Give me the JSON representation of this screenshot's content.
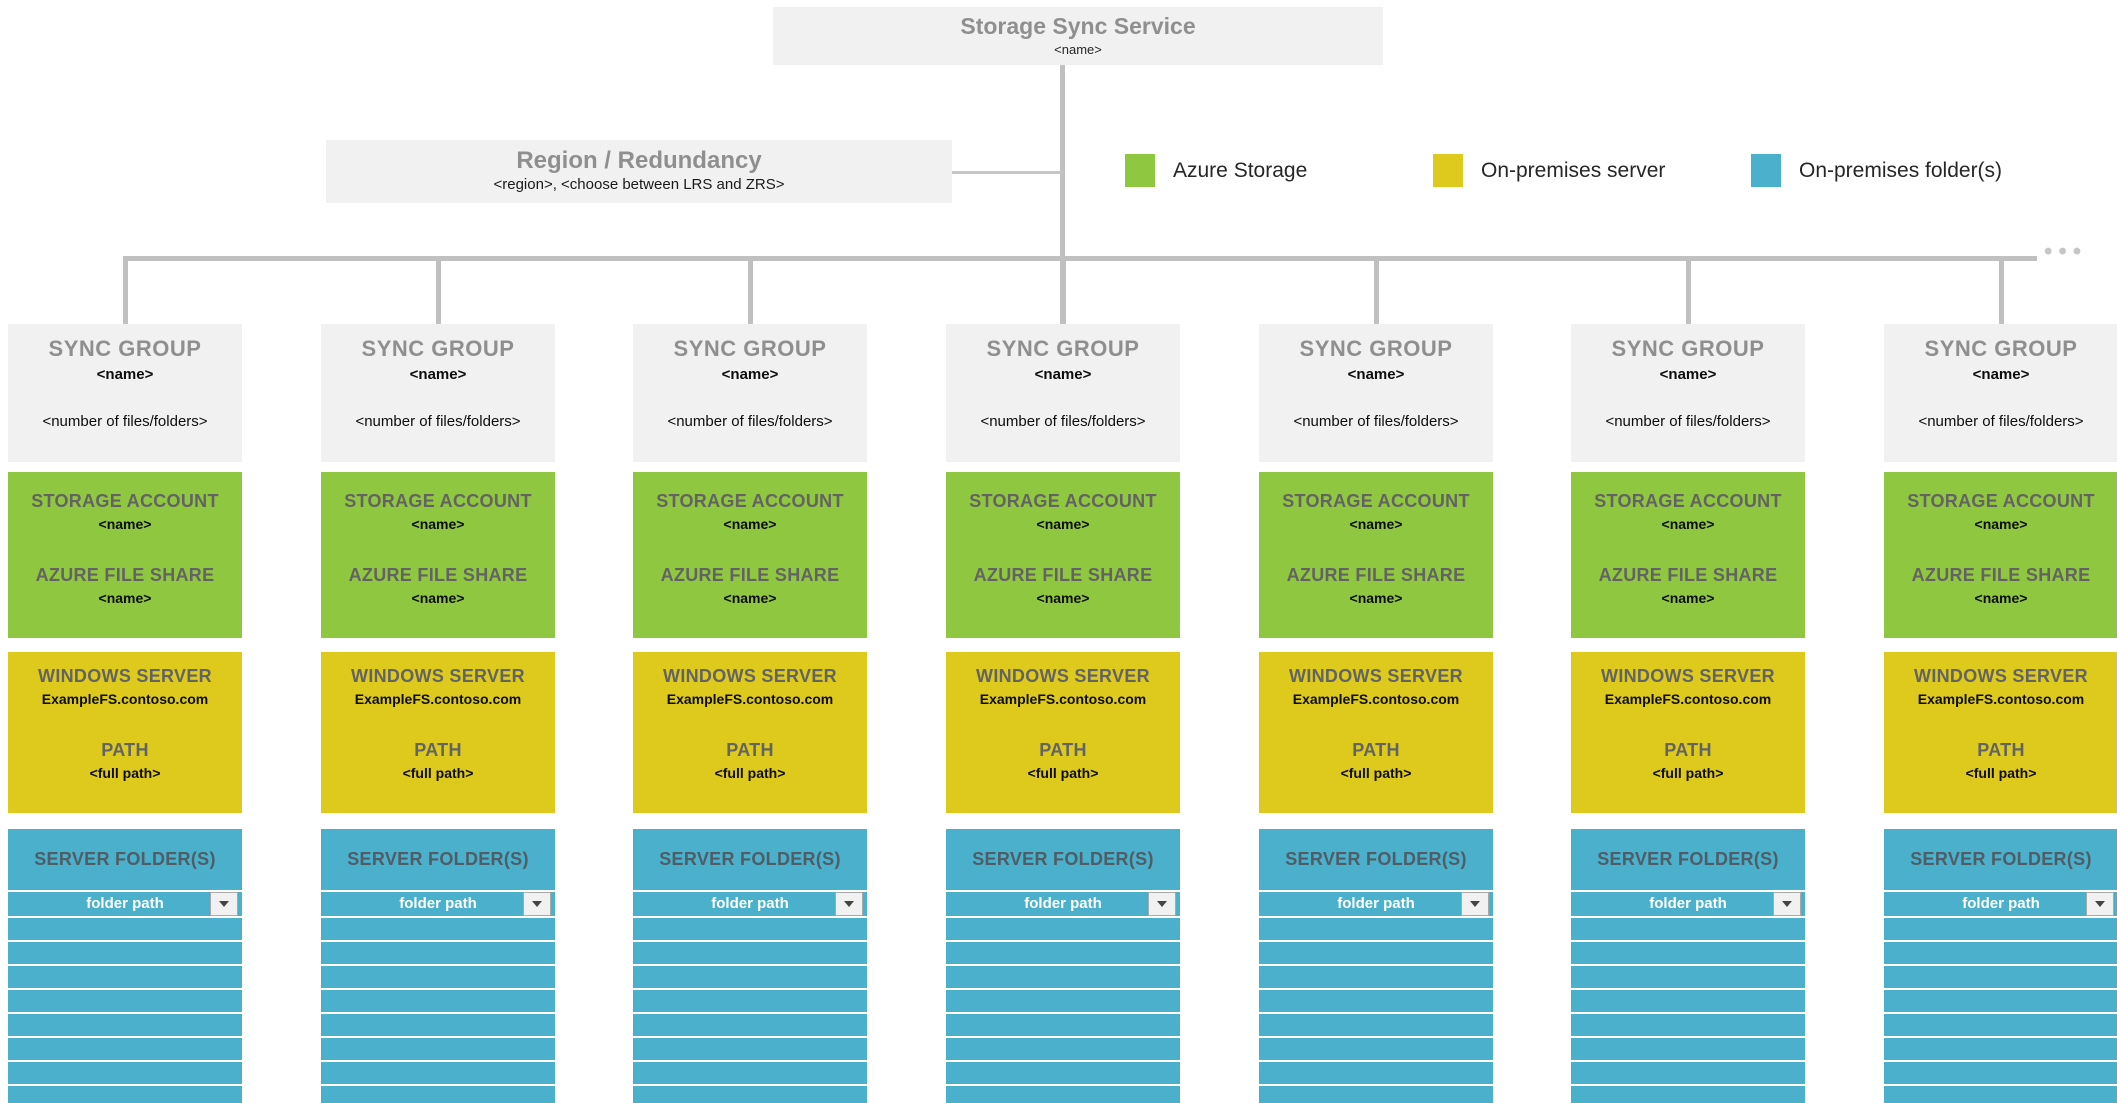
{
  "colors": {
    "azure_green": "#90c740",
    "server_yellow": "#ddca1d",
    "folder_teal": "#4ab0cc",
    "connector_gray": "#c0c0c0",
    "panel_gray": "#f1f1f1"
  },
  "service": {
    "title": "Storage Sync Service",
    "name": "<name>"
  },
  "region": {
    "title": "Region / Redundancy",
    "detail": "<region>, <choose between LRS and ZRS>"
  },
  "legend": [
    {
      "label": "Azure Storage",
      "color": "#90c740"
    },
    {
      "label": "On-premises server",
      "color": "#ddca1d"
    },
    {
      "label": "On-premises folder(s)",
      "color": "#4ab0cc"
    }
  ],
  "more_indicator": "•••",
  "sync_groups": [
    {
      "title": "SYNC GROUP",
      "name": "<name>",
      "count": "<number of files/folders>",
      "storage": {
        "account_heading": "STORAGE ACCOUNT",
        "account_name": "<name>",
        "share_heading": "AZURE FILE SHARE",
        "share_name": "<name>"
      },
      "server": {
        "server_heading": "WINDOWS SERVER",
        "server_name": "ExampleFS.contoso.com",
        "path_heading": "PATH",
        "path_name": "<full path>"
      },
      "folders": {
        "heading": "SERVER FOLDER(S)",
        "path_label": "folder path",
        "empty_rows": 8
      }
    },
    {
      "title": "SYNC GROUP",
      "name": "<name>",
      "count": "<number of files/folders>",
      "storage": {
        "account_heading": "STORAGE ACCOUNT",
        "account_name": "<name>",
        "share_heading": "AZURE FILE SHARE",
        "share_name": "<name>"
      },
      "server": {
        "server_heading": "WINDOWS SERVER",
        "server_name": "ExampleFS.contoso.com",
        "path_heading": "PATH",
        "path_name": "<full path>"
      },
      "folders": {
        "heading": "SERVER FOLDER(S)",
        "path_label": "folder path",
        "empty_rows": 8
      }
    },
    {
      "title": "SYNC GROUP",
      "name": "<name>",
      "count": "<number of files/folders>",
      "storage": {
        "account_heading": "STORAGE ACCOUNT",
        "account_name": "<name>",
        "share_heading": "AZURE FILE SHARE",
        "share_name": "<name>"
      },
      "server": {
        "server_heading": "WINDOWS SERVER",
        "server_name": "ExampleFS.contoso.com",
        "path_heading": "PATH",
        "path_name": "<full path>"
      },
      "folders": {
        "heading": "SERVER FOLDER(S)",
        "path_label": "folder path",
        "empty_rows": 8
      }
    },
    {
      "title": "SYNC GROUP",
      "name": "<name>",
      "count": "<number of files/folders>",
      "storage": {
        "account_heading": "STORAGE ACCOUNT",
        "account_name": "<name>",
        "share_heading": "AZURE FILE SHARE",
        "share_name": "<name>"
      },
      "server": {
        "server_heading": "WINDOWS SERVER",
        "server_name": "ExampleFS.contoso.com",
        "path_heading": "PATH",
        "path_name": "<full path>"
      },
      "folders": {
        "heading": "SERVER FOLDER(S)",
        "path_label": "folder path",
        "empty_rows": 8
      }
    },
    {
      "title": "SYNC GROUP",
      "name": "<name>",
      "count": "<number of files/folders>",
      "storage": {
        "account_heading": "STORAGE ACCOUNT",
        "account_name": "<name>",
        "share_heading": "AZURE FILE SHARE",
        "share_name": "<name>"
      },
      "server": {
        "server_heading": "WINDOWS SERVER",
        "server_name": "ExampleFS.contoso.com",
        "path_heading": "PATH",
        "path_name": "<full path>"
      },
      "folders": {
        "heading": "SERVER FOLDER(S)",
        "path_label": "folder path",
        "empty_rows": 8
      }
    },
    {
      "title": "SYNC GROUP",
      "name": "<name>",
      "count": "<number of files/folders>",
      "storage": {
        "account_heading": "STORAGE ACCOUNT",
        "account_name": "<name>",
        "share_heading": "AZURE FILE SHARE",
        "share_name": "<name>"
      },
      "server": {
        "server_heading": "WINDOWS SERVER",
        "server_name": "ExampleFS.contoso.com",
        "path_heading": "PATH",
        "path_name": "<full path>"
      },
      "folders": {
        "heading": "SERVER FOLDER(S)",
        "path_label": "folder path",
        "empty_rows": 8
      }
    },
    {
      "title": "SYNC GROUP",
      "name": "<name>",
      "count": "<number of files/folders>",
      "storage": {
        "account_heading": "STORAGE ACCOUNT",
        "account_name": "<name>",
        "share_heading": "AZURE FILE SHARE",
        "share_name": "<name>"
      },
      "server": {
        "server_heading": "WINDOWS SERVER",
        "server_name": "ExampleFS.contoso.com",
        "path_heading": "PATH",
        "path_name": "<full path>"
      },
      "folders": {
        "heading": "SERVER FOLDER(S)",
        "path_label": "folder path",
        "empty_rows": 8
      }
    }
  ]
}
